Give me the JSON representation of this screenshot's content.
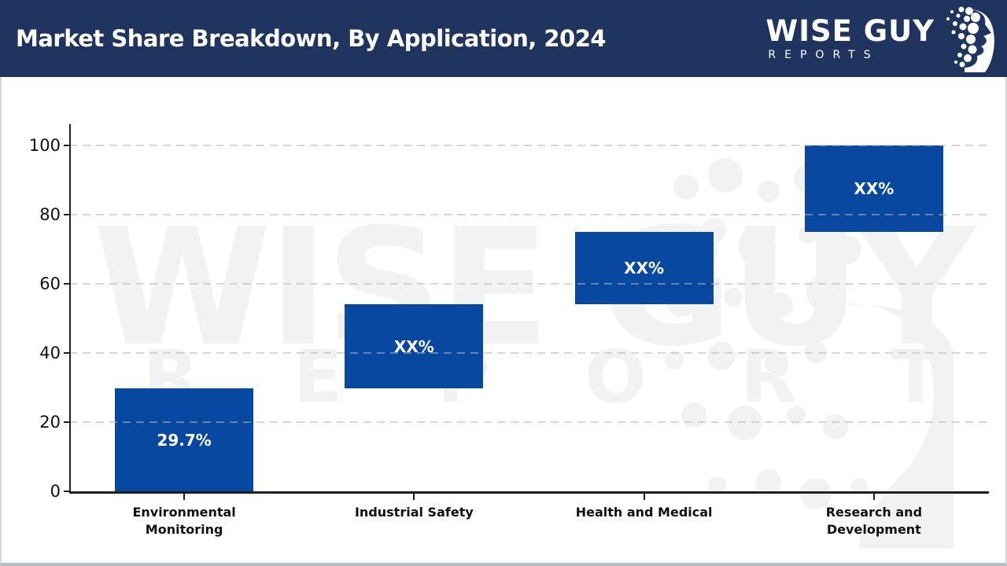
{
  "header": {
    "title": "Market Share Breakdown, By Application, 2024",
    "logo_line1": "WISE GUY",
    "logo_line2": "REPORTS"
  },
  "watermark": {
    "line1": "WISE GUY",
    "line2": "R E P O R T S"
  },
  "chart_data": {
    "type": "bar",
    "subtype": "floating-waterfall",
    "title": "Market Share Breakdown, By Application, 2024",
    "categories": [
      "Environmental Monitoring",
      "Industrial Safety",
      "Health and Medical",
      "Research and Development"
    ],
    "category_display": [
      [
        "Environmental",
        "Monitoring"
      ],
      [
        "Industrial Safety"
      ],
      [
        "Health and Medical"
      ],
      [
        "Research and",
        "Development"
      ]
    ],
    "segments": [
      {
        "start": 0,
        "end": 29.7,
        "label": "29.7%"
      },
      {
        "start": 29.7,
        "end": 54,
        "label": "XX%"
      },
      {
        "start": 54,
        "end": 75,
        "label": "XX%"
      },
      {
        "start": 75,
        "end": 100,
        "label": "XX%"
      }
    ],
    "xlabel": "",
    "ylabel": "",
    "y_ticks": [
      0,
      20,
      40,
      60,
      80,
      100
    ],
    "ylim": [
      0,
      105
    ],
    "grid": "horizontal-dashed",
    "legend": "none",
    "bar_color": "#0848A0",
    "label_color": "#ffffff"
  },
  "colors": {
    "header_bg": "#1F3560",
    "bar": "#0848A0",
    "axis": "#1f1f1f",
    "gridline": "#d9d9d9",
    "watermark": "#f2f2f2",
    "text": "#111111"
  }
}
